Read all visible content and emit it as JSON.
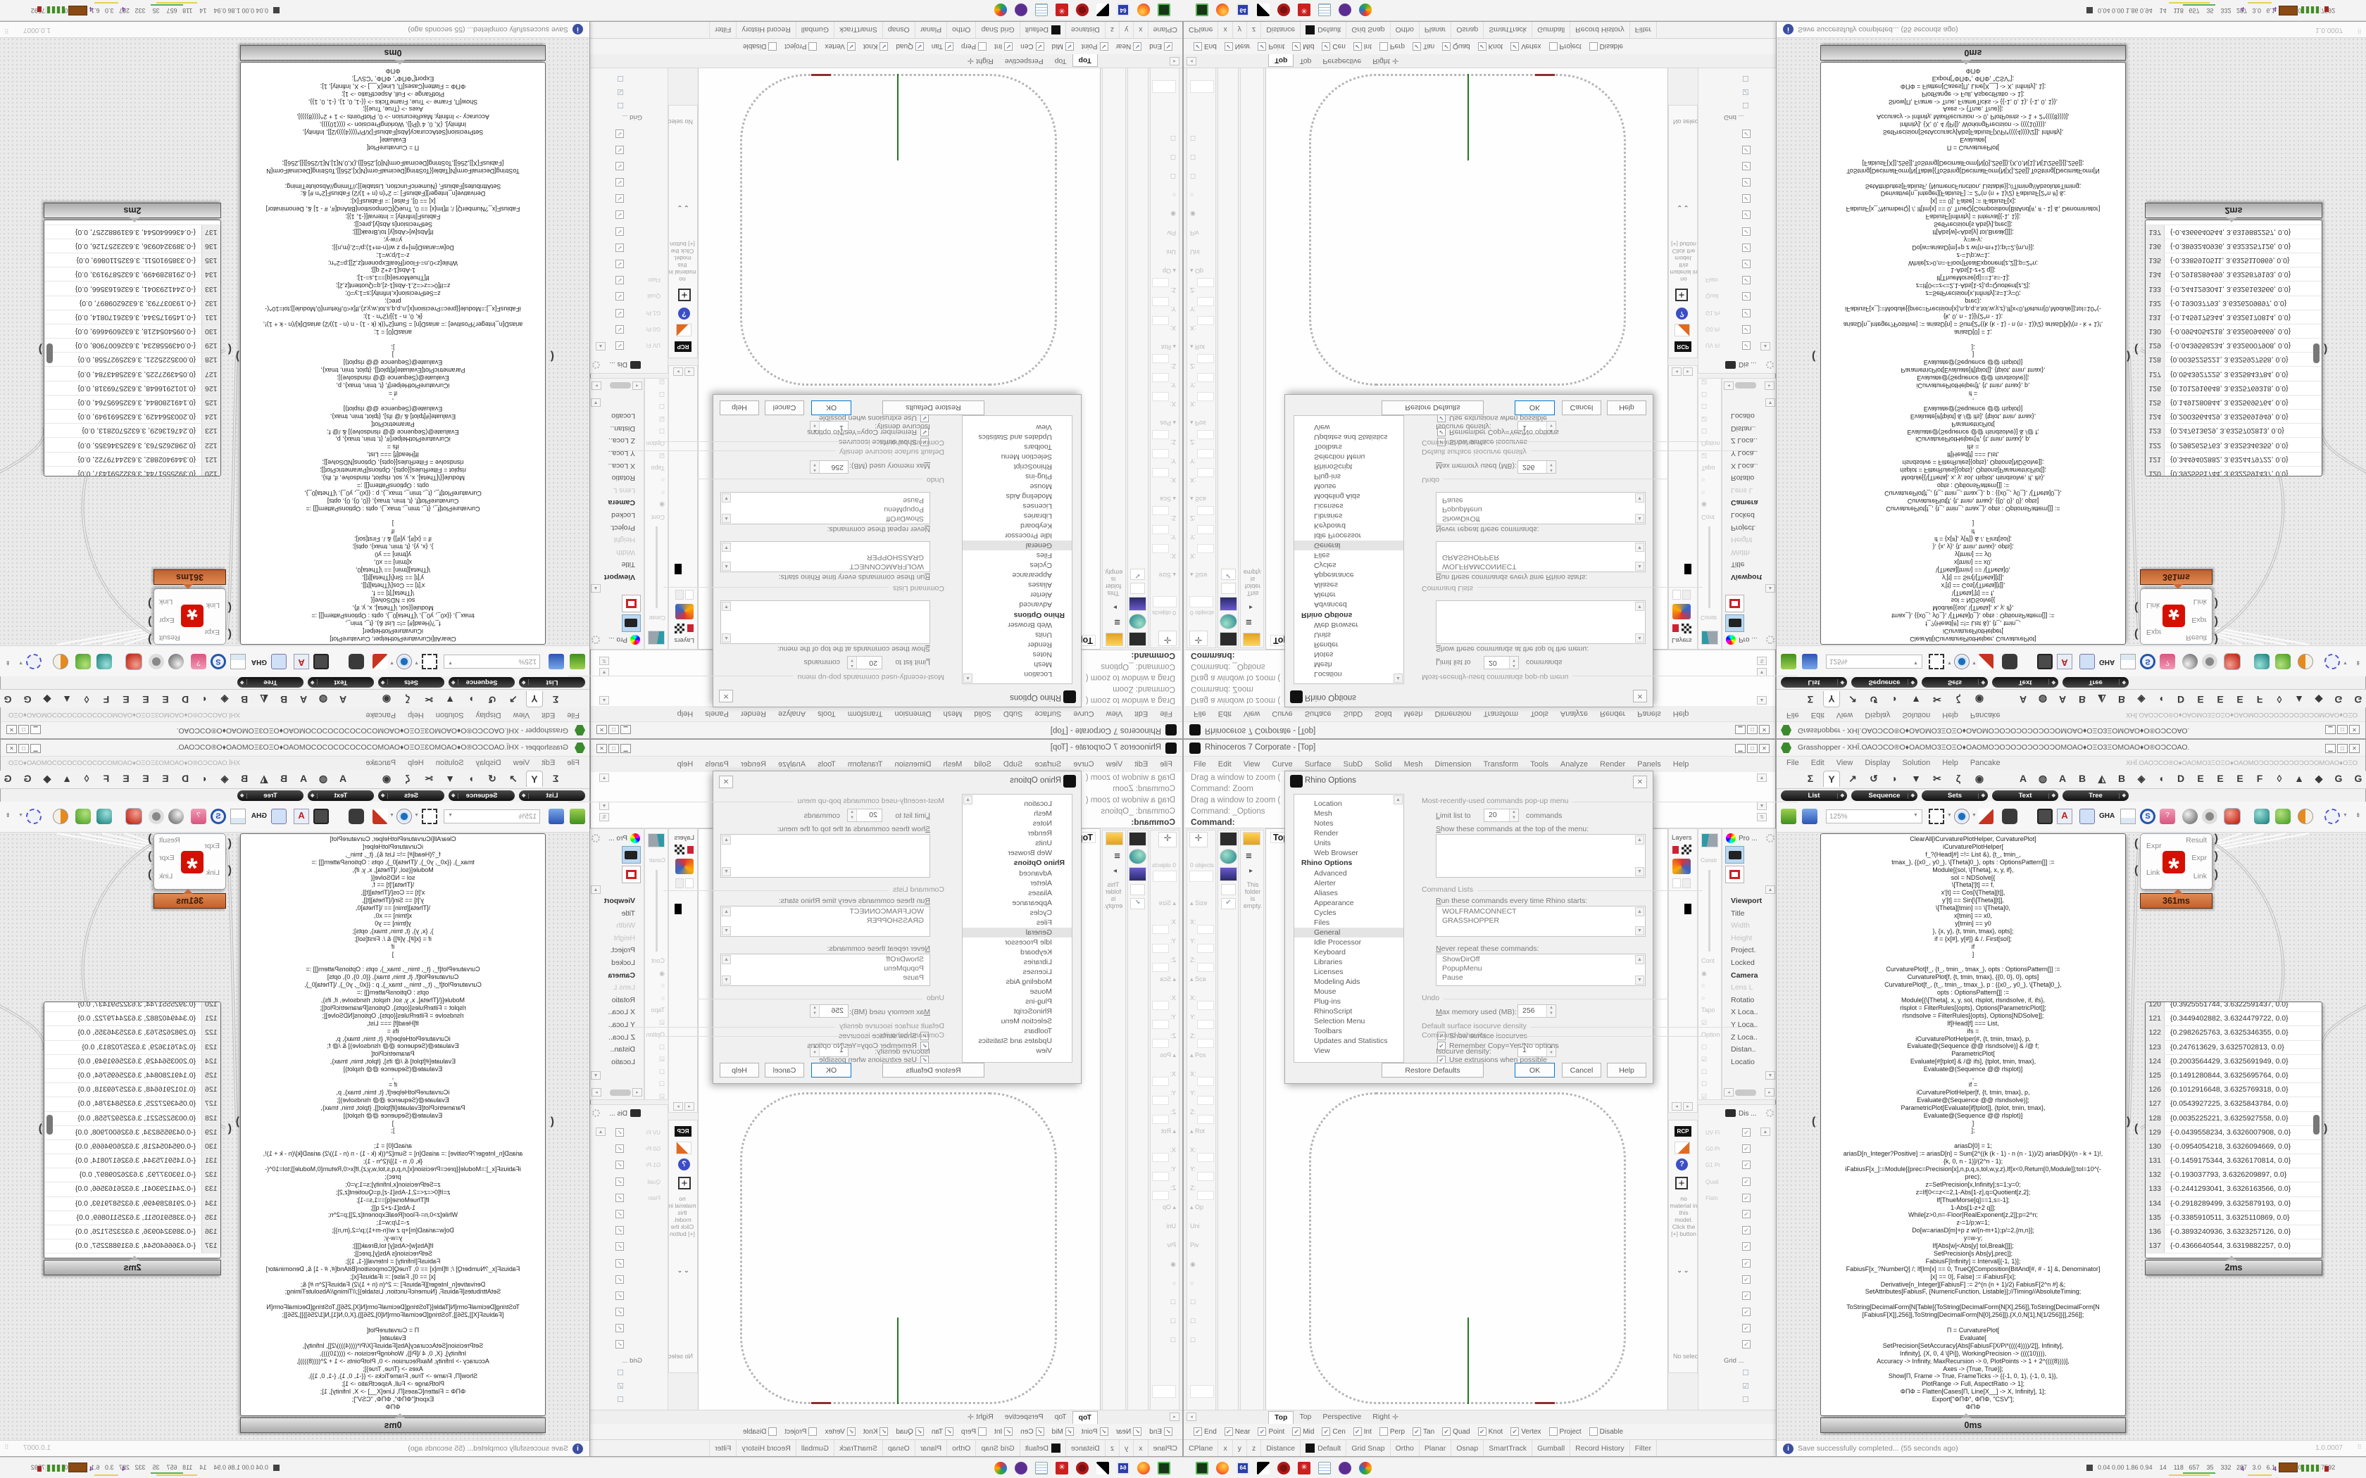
{
  "garble": "XHĪ.ΟΑΟƆCΟ®Ο♦ΟΑΟΜΟ3ΞΟΞΟ♦ΟΑΟΜΟƆΟƆΟƆΟƆΟƆΟƆΟΜΟΑΟ♦ΟΞΟ3ΞΟΜΟΑΟ♦Ο®ΟƆCΟΑΟ.",
  "rhino": {
    "title": "Rhinoceros 7 Corporate - [Top]",
    "menus": [
      {
        "label": "File"
      },
      {
        "label": "Edit"
      },
      {
        "label": "View"
      },
      {
        "label": "Curve"
      },
      {
        "label": "Surface"
      },
      {
        "label": "SubD"
      },
      {
        "label": "Solid"
      },
      {
        "label": "Mesh"
      },
      {
        "label": "Dimension"
      },
      {
        "label": "Transform"
      },
      {
        "label": "Tools"
      },
      {
        "label": "Analyze"
      },
      {
        "label": "Render"
      },
      {
        "label": "Panels"
      },
      {
        "label": "Help"
      }
    ],
    "command_lines": [
      {
        "t": "Drag a window to zoom ("
      },
      {
        "t": "Command: Zoom"
      },
      {
        "t": "Drag a window to zoom ("
      },
      {
        "t": "Command: _Options"
      }
    ],
    "command_prompt": "Command:",
    "viewport_label": "Top",
    "viewport_tabs": [
      {
        "label": "Top",
        "on": true
      },
      {
        "label": "Top"
      },
      {
        "label": "Perspective"
      },
      {
        "label": "Right"
      }
    ],
    "osnap": [
      {
        "label": "End",
        "on": true
      },
      {
        "label": "Near",
        "on": true
      },
      {
        "label": "Point",
        "on": true
      },
      {
        "label": "Mid",
        "on": true
      },
      {
        "label": "Cen",
        "on": true
      },
      {
        "label": "Int",
        "on": true
      },
      {
        "label": "Perp",
        "on": false
      },
      {
        "label": "Tan",
        "on": true
      },
      {
        "label": "Quad",
        "on": true
      },
      {
        "label": "Knot",
        "on": true
      },
      {
        "label": "Vertex",
        "on": true
      },
      {
        "label": "Project",
        "on": false
      },
      {
        "label": "Disable",
        "on": false
      }
    ],
    "statusbar": [
      {
        "label": "CPlane"
      },
      {
        "label": "x"
      },
      {
        "label": "y"
      },
      {
        "label": "z"
      },
      {
        "label": "Distance"
      },
      {
        "label": "Default",
        "swatch": true
      },
      {
        "label": "Grid Snap",
        "hl": true
      },
      {
        "label": "Ortho"
      },
      {
        "label": "Planar"
      },
      {
        "label": "Osnap",
        "hl": true
      },
      {
        "label": "SmartTrack"
      },
      {
        "label": "Gumball",
        "hl": true
      },
      {
        "label": "Record History"
      },
      {
        "label": "Filter"
      }
    ],
    "boxedit_header": "0 objects",
    "boxedit_rows": [
      {
        "label": "▴ Size"
      },
      {
        "label": "X:",
        "field": true
      },
      {
        "label": "Y:",
        "field": true
      },
      {
        "label": "Z:",
        "field": true
      },
      {
        "label": "▴ Sca"
      },
      {
        "label": "X:",
        "field": true
      },
      {
        "label": "Y:",
        "field": true
      },
      {
        "label": "Z:",
        "field": true
      },
      {
        "label": "▴ Pos"
      },
      {
        "label": "X:",
        "field": true
      },
      {
        "label": "Y:",
        "field": true
      },
      {
        "label": "Z:",
        "field": true
      },
      {
        "label": "▴ Rot"
      },
      {
        "label": "X:",
        "field": true
      },
      {
        "label": "Y:",
        "field": true
      },
      {
        "label": "Z:",
        "field": true
      },
      {
        "label": "▴ Op"
      },
      {
        "label": "Uni"
      },
      {
        "label": "Piv"
      },
      {
        "label": "◉"
      },
      {
        "label": "○"
      },
      {
        "label": "☐"
      },
      {
        "label": "☐"
      },
      {
        "label": "☐"
      }
    ],
    "folder_note": "This folder is empty.",
    "layers_title": "Layers",
    "constraint_title": "Constr",
    "constraint_rows": [
      {
        "label": "Cont"
      },
      {
        "label": "◉"
      },
      {
        "label": "○"
      },
      {
        "label": "○"
      },
      {
        "label": "Tapo"
      },
      {
        "label": "☑"
      },
      {
        "label": "Option"
      },
      {
        "label": "☐"
      },
      {
        "label": "☑"
      },
      {
        "label": "☐"
      },
      {
        "label": "☐"
      },
      {
        "label": "☑"
      }
    ],
    "props_header": "Pro ...",
    "props_fields": [
      {
        "label": "Viewport",
        "sec": true
      },
      {
        "label": "Title"
      },
      {
        "label": "Width",
        "dim": true
      },
      {
        "label": "Height",
        "dim": true
      },
      {
        "label": "Project."
      },
      {
        "label": "Locked"
      },
      {
        "label": "Camera",
        "sec": true
      },
      {
        "label": "Lens L",
        "dim": true
      },
      {
        "label": "Rotatio"
      },
      {
        "label": "X Loca.."
      },
      {
        "label": "Y Loca.."
      },
      {
        "label": "Z Loca.."
      },
      {
        "label": "Distan.."
      },
      {
        "label": "Locatio"
      }
    ],
    "display_header": "Dis ...",
    "display_rows": [
      {
        "label": "UV Fl"
      },
      {
        "label": "G0 Pr"
      },
      {
        "label": "G1 Pr"
      },
      {
        "label": "Quali"
      },
      {
        "label": "Flatn"
      },
      {
        "label": ""
      },
      {
        "label": ""
      },
      {
        "label": ""
      },
      {
        "label": ""
      },
      {
        "label": ""
      },
      {
        "label": ""
      },
      {
        "label": ""
      },
      {
        "label": ""
      },
      {
        "label": ""
      }
    ],
    "grid_label": "Grid ...",
    "grid_rows": [
      {
        "label": "☐"
      },
      {
        "label": "☑"
      },
      {
        "label": "☐"
      },
      {
        "label": "☐"
      }
    ],
    "object_label": "Objec",
    "display_setting": "Wireframe\" set",
    "rcp_label": "RCP",
    "materials_note_lines": "no material in this model. Click the [+] button",
    "materials_chevrons": "⌄⌄",
    "no_selection": "No selection",
    "dialog": {
      "title": "Rhino Options",
      "tree_top": [
        {
          "label": "Location"
        },
        {
          "label": "Mesh"
        },
        {
          "label": "Notes"
        },
        {
          "label": "Render",
          "plus": true
        },
        {
          "label": "Units",
          "plus": true
        },
        {
          "label": "Web Browser"
        }
      ],
      "tree_header": "Rhino Options",
      "tree_items": [
        {
          "label": "Advanced"
        },
        {
          "label": "Alerter"
        },
        {
          "label": "Aliases"
        },
        {
          "label": "Appearance",
          "plus": true
        },
        {
          "label": "Cycles"
        },
        {
          "label": "Files",
          "plus": true
        },
        {
          "label": "General",
          "sel": true
        },
        {
          "label": "Idle Processor"
        },
        {
          "label": "Keyboard"
        },
        {
          "label": "Libraries"
        },
        {
          "label": "Licenses"
        },
        {
          "label": "Modeling Aids",
          "plus": true
        },
        {
          "label": "Mouse",
          "plus": true
        },
        {
          "label": "Plug-ins"
        },
        {
          "label": "RhinoScript"
        },
        {
          "label": "Selection Menu"
        },
        {
          "label": "Toolbars",
          "plus": true
        },
        {
          "label": "Updates and Statistics"
        },
        {
          "label": "View",
          "plus": true
        }
      ],
      "group1": "Most-recently-used commands pop-up menu",
      "limit_label": "Limit list to",
      "limit_value": "20",
      "limit_suffix": "commands",
      "show_label": "Show these commands at the top of the menu:",
      "group2": "Command Lists",
      "run_label": "Run these commands every time Rhino starts:",
      "run_items": [
        {
          "t": "WOLFRAMCONNECT"
        },
        {
          "t": "GRASSHOPPER"
        }
      ],
      "never_label": "Never repeat these commands:",
      "never_items": [
        {
          "t": "ShowDirOff"
        },
        {
          "t": "PopupMenu"
        },
        {
          "t": "Pause"
        }
      ],
      "group3": "Undo",
      "memory_label": "Max memory used (MB):",
      "memory_value": "256",
      "group4": "Default surface isocurve density",
      "isocurve_check": "Show surface isocurves",
      "density_label": "Isocurve density:",
      "density_value": "1",
      "group5": "Command behavior",
      "check_copy": "Remember Copy=Yes/No options",
      "check_ext": "Use extrusions when possible",
      "btn_restore": "Restore Defaults",
      "btn_ok": "OK",
      "btn_cancel": "Cancel",
      "btn_help": "Help"
    }
  },
  "gh": {
    "title": "Grasshopper - XHĪ.ΟΑΟƆCΟ®Ο♦ΟΑΟΜΟ3ΞΟΞΟ♦ΟΑΟΜΟƆΟƆΟƆΟƆΟƆΟƆΟΜΟΑΟ♦ΟΞΟ3ΞΟΜΟΑΟ♦Ο®ΟƆCΟΑΟ.",
    "menus": [
      {
        "label": "File"
      },
      {
        "label": "Edit"
      },
      {
        "label": "View"
      },
      {
        "label": "Display"
      },
      {
        "label": "Solution"
      },
      {
        "label": "Help"
      },
      {
        "label": "Pancake"
      }
    ],
    "tab_icons": [
      {
        "g": "",
        "hex": true
      },
      {
        "g": "Σ"
      },
      {
        "g": "Y",
        "act": true
      },
      {
        "g": "↗"
      },
      {
        "g": "↺"
      },
      {
        "g": "◗"
      },
      {
        "g": "▼"
      },
      {
        "g": "✂"
      },
      {
        "g": "ζ"
      },
      {
        "g": "◉"
      }
    ],
    "plugin_tabs": [
      {
        "g": "A"
      },
      {
        "g": "◍"
      },
      {
        "g": "A"
      },
      {
        "g": "B"
      },
      {
        "g": "◭"
      },
      {
        "g": "B"
      },
      {
        "g": "◈"
      },
      {
        "g": "◖"
      },
      {
        "g": "D"
      },
      {
        "g": "E"
      },
      {
        "g": "E"
      },
      {
        "g": "E"
      },
      {
        "g": "F"
      },
      {
        "g": "◊"
      },
      {
        "g": "▲"
      },
      {
        "g": "◆"
      },
      {
        "g": "G"
      },
      {
        "g": "G"
      }
    ],
    "pills": [
      {
        "label": "List"
      },
      {
        "label": "Sequence"
      },
      {
        "label": "Sets"
      },
      {
        "label": "Text"
      },
      {
        "label": "Tree"
      }
    ],
    "zoom_value": "125%",
    "gha_label": "GHA",
    "component": {
      "in1": "Expr",
      "in2": "Link",
      "out1": "Result",
      "out2": "Expr",
      "out3": "Link",
      "time": "361ms"
    },
    "code_time": "0ms",
    "list_time": "2ms",
    "code": "ClearAll[iCurvaturePlotHelper, CurvaturePlot]\niCurvaturePlotHelper[\nf_?(Head[#] =!= List &), {t_, tmin_,\ntmax_}, {{x0_, y0_}, \\[Theta]0_}, opts : OptionsPattern[]] :=\nModule[{sol, \\[Theta], x, y, if},\nsol = NDSolve[{\n\\[Theta]'[t] == f,\nx'[t] == Cos[\\[Theta][t]],\ny'[t] == Sin[\\[Theta][t]],\n\\[Theta][tmin] == \\[Theta]0,\nx[tmin] == x0,\ny[tmin] == y0\n}, {x, y}, {t, tmin, tmax}, opts];\nif = {x[#], y[#]} & /. First[sol];\nif\n]\n\nCurvaturePlot[f_, {t_, tmin_, tmax_}, opts : OptionsPattern[]] :=\nCurvaturePlot[f, {t, tmin, tmax}, {{0, 0}, 0}, opts]\nCurvaturePlot[f_, {t_, tmin_, tmax_}, p : {{x0_, y0_}, \\[Theta]0_},\nopts : OptionsPattern[]] :=\nModule[{\\[Theta], x, y, sol, rlsplot, rlsndsolve, if, ifs},\nrlsplot = FilterRules[{opts}, Options[ParametricPlot]];\nrlsndsolve = FilterRules[{opts}, Options[NDSolve]];\nIf[Head[f] === List,\nifs =\niCurvaturePlotHelper[#, {t, tmin, tmax}, p,\nEvaluate@(Sequence @@ rlsndsolve)] & /@ f;\nParametricPlot[\nEvaluate[#[tplot] & /@ ifs], {tplot, tmin, tmax},\nEvaluate@(Sequence @@ rlsplot)]\n,\nif =\niCurvaturePlotHelper[f, {t, tmin, tmax}, p,\nEvaluate@(Sequence @@ rlsndsolve)];\nParametricPlot[Evaluate[if[tplot]], {tplot, tmin, tmax},\nEvaluate@(Sequence @@ rlsplot)]\n]\n];\n\nariasD[0] = 1;\nariasD[n_Integer?Positive] := ariasD[n] = Sum[2^((k (k - 1) - n (n - 1))/2) ariasD[k]/(n - k + 1)!,\n{k, 0, n - 1}]/(2^n - 1);\niFabiusF[x_]:=Module[{prec=Precision[x],n,p,q,s,tol,w,y,z},If[x<0,Return[0,Module]];tol=10^(-\nprec);\nz=SetPrecision[x,Infinity];s=1;y=0;\nz=If[0<=z<=2,1-Abs[1-z],q=Quotient[z,2];\nIf[ThueMorse[q]==1,s=-1];\n1-Abs[1-z+2 q]];\nWhile[z>0,n=-Floor[RealExponent[z,2]];p=2^n;\nz-=1/p;w=1;\nDo[w=ariasD[m]+p z w/(n-m+1);p/=2,{m,n}];\ny=w-y;\nIf[Abs[w]<Abs[y] tol,Break[]]];\nSetPrecision[s Abs[y],prec]];\nFabiusF[Infinity] = Interval[{-1, 1}];\nFabiusF[x_?NumberQ] /; If[Im[x] == 0, TrueQ[Composition[BitAnd[#, # - 1] &, Denominator]\n[x] == 0], False] := iFabiusF[x];\nDerivative[n_Integer][FabiusF] := 2^(n (n + 1)/2) FabiusF[2^n #] &;\nSetAttributes[FabiusF, {NumericFunction, Listable}];//Timing//AbsoluteTiming;\n\nToString[DecimalForm[N[Table[{ToString[DecimalForm[N[X],256]],ToString[DecimalForm[N\n[FabiusF[X]],256]],ToString[DecimalForm[N[0],256]]},{X,0,N[1],N[1/256]}]],256]];\n\nΠ = CurvaturePlot[\nEvaluate[\nSetPrecision[SetAccuracy[Abs[FabiusF[X/Pi*((((4))))/2]], Infinity],\nInfinity], {X, 0, 4 \\[Pi]}, WorkingPrecision -> ((((10)))),\nAccuracy -> Infinity, MaxRecursion -> 0, PlotPoints -> 1 + 2^((((8))))],\nAxes -> {True, True}];\nShow[Π, Frame -> True, FrameTicks -> {{-1, 0, 1}, {-1, 0, 1}},\nPlotRange -> Full, AspectRatio -> 1];\nΦΠΦ = Flatten[Cases[Π, Line[X__] -> X, Infinity], 1];\nExport[\"ΦΠΦ\", ΦΠΦ, \"CSV\"];\nΦΠΦ",
    "list_rows": [
      {
        "i": "120",
        "v": "{0.3925551744, 3.6322591437, 0.0}"
      },
      {
        "i": "121",
        "v": "{0.3449402882, 3.6324479722, 0.0}"
      },
      {
        "i": "122",
        "v": "{0.2982625763, 3.6325346355, 0.0}"
      },
      {
        "i": "123",
        "v": "{0.247613629, 3.6325702813, 0.0}"
      },
      {
        "i": "124",
        "v": "{0.2003564429, 3.6325691949, 0.0}"
      },
      {
        "i": "125",
        "v": "{0.1491280844, 3.6325695764, 0.0}"
      },
      {
        "i": "126",
        "v": "{0.1012916648, 3.6325769318, 0.0}"
      },
      {
        "i": "127",
        "v": "{0.0543927225, 3.6325843784, 0.0}"
      },
      {
        "i": "128",
        "v": "{0.0035225221, 3.6325927558, 0.0}"
      },
      {
        "i": "129",
        "v": "{-0.0439558234, 3.6326007908, 0.0}"
      },
      {
        "i": "130",
        "v": "{-0.0954054218, 3.6326094669, 0.0}"
      },
      {
        "i": "131",
        "v": "{-0.1459175344, 3.6326170814, 0.0}"
      },
      {
        "i": "132",
        "v": "{-0.193037793, 3.6326209897, 0.0}"
      },
      {
        "i": "133",
        "v": "{-0.2441293041, 3.6326163566, 0.0}"
      },
      {
        "i": "134",
        "v": "{-0.2918289499, 3.6325879193, 0.0}"
      },
      {
        "i": "135",
        "v": "{-0.3385910511, 3.6325110869, 0.0}"
      },
      {
        "i": "136",
        "v": "{-0.3893240936, 3.6323257126, 0.0}"
      },
      {
        "i": "137",
        "v": "{-0.4366640544, 3.6319882257, 0.0}"
      }
    ],
    "status_left": "Save successfully completed... (55 seconds ago)",
    "status_right": "1.0.0007"
  },
  "taskbar": {
    "floppy_label": "64",
    "monitor_numbers": "0.04 0.00 1.86 0.94    14    118   657    35    332   287   3.0   6.1   33    30   61607592",
    "tray_fours": "4"
  }
}
